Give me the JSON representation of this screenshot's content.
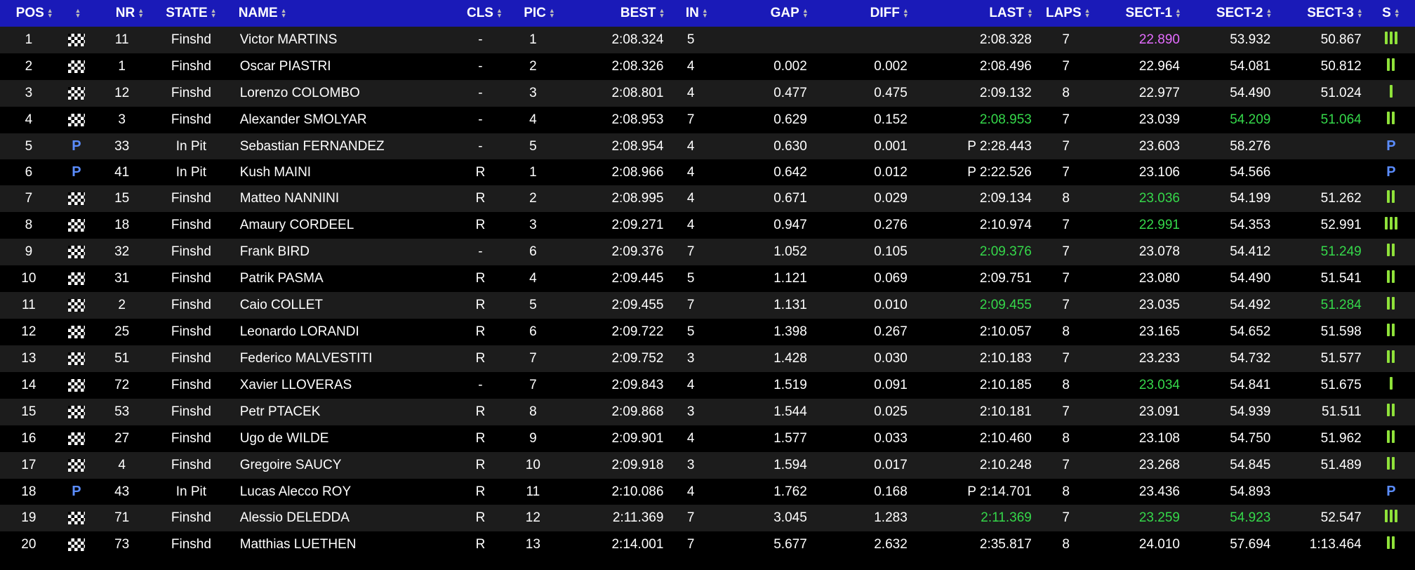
{
  "columns": {
    "pos": "POS",
    "nr": "NR",
    "state": "STATE",
    "name": "NAME",
    "cls": "CLS",
    "pic": "PIC",
    "best": "BEST",
    "in": "IN",
    "gap": "GAP",
    "diff": "DIFF",
    "last": "LAST",
    "laps": "LAPS",
    "s1": "SECT-1",
    "s2": "SECT-2",
    "s3": "SECT-3",
    "s": "S"
  },
  "style": {
    "header_bg": "#1a1ab8",
    "row_odd": "#1c1c1c",
    "row_even": "#000000",
    "text": "#ffffff",
    "green": "#35d84a",
    "purple": "#e46cff",
    "pit_blue": "#5b8dff",
    "bar_green": "#8fe23a",
    "bar_yellow": "#d8d83a",
    "font_size": 19
  },
  "flag_types": {
    "chk": "checkered-flag",
    "pit": "P"
  },
  "rows": [
    {
      "pos": "1",
      "flag": "chk",
      "nr": "11",
      "state": "Finshd",
      "name": "Victor MARTINS",
      "cls": "-",
      "pic": "1",
      "best": "2:08.324",
      "in": "5",
      "gap": "",
      "diff": "",
      "last": "2:08.328",
      "last_c": "w",
      "laps": "7",
      "s1": "22.890",
      "s1_c": "p",
      "s2": "53.932",
      "s2_c": "w",
      "s3": "50.867",
      "s3_c": "w",
      "bars": [
        "g",
        "g",
        "g"
      ]
    },
    {
      "pos": "2",
      "flag": "chk",
      "nr": "1",
      "state": "Finshd",
      "name": "Oscar PIASTRI",
      "cls": "-",
      "pic": "2",
      "best": "2:08.326",
      "in": "4",
      "gap": "0.002",
      "diff": "0.002",
      "last": "2:08.496",
      "last_c": "w",
      "laps": "7",
      "s1": "22.964",
      "s1_c": "w",
      "s2": "54.081",
      "s2_c": "w",
      "s3": "50.812",
      "s3_c": "w",
      "bars": [
        "g",
        "g"
      ]
    },
    {
      "pos": "3",
      "flag": "chk",
      "nr": "12",
      "state": "Finshd",
      "name": "Lorenzo COLOMBO",
      "cls": "-",
      "pic": "3",
      "best": "2:08.801",
      "in": "4",
      "gap": "0.477",
      "diff": "0.475",
      "last": "2:09.132",
      "last_c": "w",
      "laps": "8",
      "s1": "22.977",
      "s1_c": "w",
      "s2": "54.490",
      "s2_c": "w",
      "s3": "51.024",
      "s3_c": "w",
      "bars": [
        "g"
      ]
    },
    {
      "pos": "4",
      "flag": "chk",
      "nr": "3",
      "state": "Finshd",
      "name": "Alexander SMOLYAR",
      "cls": "-",
      "pic": "4",
      "best": "2:08.953",
      "in": "7",
      "gap": "0.629",
      "diff": "0.152",
      "last": "2:08.953",
      "last_c": "g",
      "laps": "7",
      "s1": "23.039",
      "s1_c": "w",
      "s2": "54.209",
      "s2_c": "g",
      "s3": "51.064",
      "s3_c": "g",
      "bars": [
        "g",
        "g"
      ]
    },
    {
      "pos": "5",
      "flag": "pit",
      "nr": "33",
      "state": "In Pit",
      "name": "Sebastian FERNANDEZ",
      "cls": "-",
      "pic": "5",
      "best": "2:08.954",
      "in": "4",
      "gap": "0.630",
      "diff": "0.001",
      "last": "P 2:28.443",
      "last_c": "w",
      "laps": "7",
      "s1": "23.603",
      "s1_c": "w",
      "s2": "58.276",
      "s2_c": "w",
      "s3": "",
      "s3_c": "w",
      "bars": [
        "pit"
      ]
    },
    {
      "pos": "6",
      "flag": "pit",
      "nr": "41",
      "state": "In Pit",
      "name": "Kush MAINI",
      "cls": "R",
      "pic": "1",
      "best": "2:08.966",
      "in": "4",
      "gap": "0.642",
      "diff": "0.012",
      "last": "P 2:22.526",
      "last_c": "w",
      "laps": "7",
      "s1": "23.106",
      "s1_c": "w",
      "s2": "54.566",
      "s2_c": "w",
      "s3": "",
      "s3_c": "w",
      "bars": [
        "pit"
      ]
    },
    {
      "pos": "7",
      "flag": "chk",
      "nr": "15",
      "state": "Finshd",
      "name": "Matteo NANNINI",
      "cls": "R",
      "pic": "2",
      "best": "2:08.995",
      "in": "4",
      "gap": "0.671",
      "diff": "0.029",
      "last": "2:09.134",
      "last_c": "w",
      "laps": "8",
      "s1": "23.036",
      "s1_c": "g",
      "s2": "54.199",
      "s2_c": "w",
      "s3": "51.262",
      "s3_c": "w",
      "bars": [
        "g",
        "g"
      ]
    },
    {
      "pos": "8",
      "flag": "chk",
      "nr": "18",
      "state": "Finshd",
      "name": "Amaury CORDEEL",
      "cls": "R",
      "pic": "3",
      "best": "2:09.271",
      "in": "4",
      "gap": "0.947",
      "diff": "0.276",
      "last": "2:10.974",
      "last_c": "w",
      "laps": "7",
      "s1": "22.991",
      "s1_c": "g",
      "s2": "54.353",
      "s2_c": "w",
      "s3": "52.991",
      "s3_c": "w",
      "bars": [
        "g",
        "g",
        "g"
      ]
    },
    {
      "pos": "9",
      "flag": "chk",
      "nr": "32",
      "state": "Finshd",
      "name": "Frank BIRD",
      "cls": "-",
      "pic": "6",
      "best": "2:09.376",
      "in": "7",
      "gap": "1.052",
      "diff": "0.105",
      "last": "2:09.376",
      "last_c": "g",
      "laps": "7",
      "s1": "23.078",
      "s1_c": "w",
      "s2": "54.412",
      "s2_c": "w",
      "s3": "51.249",
      "s3_c": "g",
      "bars": [
        "g",
        "g"
      ]
    },
    {
      "pos": "10",
      "flag": "chk",
      "nr": "31",
      "state": "Finshd",
      "name": "Patrik PASMA",
      "cls": "R",
      "pic": "4",
      "best": "2:09.445",
      "in": "5",
      "gap": "1.121",
      "diff": "0.069",
      "last": "2:09.751",
      "last_c": "w",
      "laps": "7",
      "s1": "23.080",
      "s1_c": "w",
      "s2": "54.490",
      "s2_c": "w",
      "s3": "51.541",
      "s3_c": "w",
      "bars": [
        "g",
        "g"
      ]
    },
    {
      "pos": "11",
      "flag": "chk",
      "nr": "2",
      "state": "Finshd",
      "name": "Caio COLLET",
      "cls": "R",
      "pic": "5",
      "best": "2:09.455",
      "in": "7",
      "gap": "1.131",
      "diff": "0.010",
      "last": "2:09.455",
      "last_c": "g",
      "laps": "7",
      "s1": "23.035",
      "s1_c": "w",
      "s2": "54.492",
      "s2_c": "w",
      "s3": "51.284",
      "s3_c": "g",
      "bars": [
        "g",
        "g"
      ]
    },
    {
      "pos": "12",
      "flag": "chk",
      "nr": "25",
      "state": "Finshd",
      "name": "Leonardo LORANDI",
      "cls": "R",
      "pic": "6",
      "best": "2:09.722",
      "in": "5",
      "gap": "1.398",
      "diff": "0.267",
      "last": "2:10.057",
      "last_c": "w",
      "laps": "8",
      "s1": "23.165",
      "s1_c": "w",
      "s2": "54.652",
      "s2_c": "w",
      "s3": "51.598",
      "s3_c": "w",
      "bars": [
        "g",
        "g"
      ]
    },
    {
      "pos": "13",
      "flag": "chk",
      "nr": "51",
      "state": "Finshd",
      "name": "Federico MALVESTITI",
      "cls": "R",
      "pic": "7",
      "best": "2:09.752",
      "in": "3",
      "gap": "1.428",
      "diff": "0.030",
      "last": "2:10.183",
      "last_c": "w",
      "laps": "7",
      "s1": "23.233",
      "s1_c": "w",
      "s2": "54.732",
      "s2_c": "w",
      "s3": "51.577",
      "s3_c": "w",
      "bars": [
        "g",
        "g"
      ]
    },
    {
      "pos": "14",
      "flag": "chk",
      "nr": "72",
      "state": "Finshd",
      "name": "Xavier LLOVERAS",
      "cls": "-",
      "pic": "7",
      "best": "2:09.843",
      "in": "4",
      "gap": "1.519",
      "diff": "0.091",
      "last": "2:10.185",
      "last_c": "w",
      "laps": "8",
      "s1": "23.034",
      "s1_c": "g",
      "s2": "54.841",
      "s2_c": "w",
      "s3": "51.675",
      "s3_c": "w",
      "bars": [
        "g"
      ]
    },
    {
      "pos": "15",
      "flag": "chk",
      "nr": "53",
      "state": "Finshd",
      "name": "Petr PTACEK",
      "cls": "R",
      "pic": "8",
      "best": "2:09.868",
      "in": "3",
      "gap": "1.544",
      "diff": "0.025",
      "last": "2:10.181",
      "last_c": "w",
      "laps": "7",
      "s1": "23.091",
      "s1_c": "w",
      "s2": "54.939",
      "s2_c": "w",
      "s3": "51.511",
      "s3_c": "w",
      "bars": [
        "g",
        "g"
      ]
    },
    {
      "pos": "16",
      "flag": "chk",
      "nr": "27",
      "state": "Finshd",
      "name": "Ugo de WILDE",
      "cls": "R",
      "pic": "9",
      "best": "2:09.901",
      "in": "4",
      "gap": "1.577",
      "diff": "0.033",
      "last": "2:10.460",
      "last_c": "w",
      "laps": "8",
      "s1": "23.108",
      "s1_c": "w",
      "s2": "54.750",
      "s2_c": "w",
      "s3": "51.962",
      "s3_c": "w",
      "bars": [
        "g",
        "g"
      ]
    },
    {
      "pos": "17",
      "flag": "chk",
      "nr": "4",
      "state": "Finshd",
      "name": "Gregoire SAUCY",
      "cls": "R",
      "pic": "10",
      "best": "2:09.918",
      "in": "3",
      "gap": "1.594",
      "diff": "0.017",
      "last": "2:10.248",
      "last_c": "w",
      "laps": "7",
      "s1": "23.268",
      "s1_c": "w",
      "s2": "54.845",
      "s2_c": "w",
      "s3": "51.489",
      "s3_c": "w",
      "bars": [
        "g",
        "g"
      ]
    },
    {
      "pos": "18",
      "flag": "pit",
      "nr": "43",
      "state": "In Pit",
      "name": "Lucas Alecco ROY",
      "cls": "R",
      "pic": "11",
      "best": "2:10.086",
      "in": "4",
      "gap": "1.762",
      "diff": "0.168",
      "last": "P 2:14.701",
      "last_c": "w",
      "laps": "8",
      "s1": "23.436",
      "s1_c": "w",
      "s2": "54.893",
      "s2_c": "w",
      "s3": "",
      "s3_c": "w",
      "bars": [
        "pit"
      ]
    },
    {
      "pos": "19",
      "flag": "chk",
      "nr": "71",
      "state": "Finshd",
      "name": "Alessio DELEDDA",
      "cls": "R",
      "pic": "12",
      "best": "2:11.369",
      "in": "7",
      "gap": "3.045",
      "diff": "1.283",
      "last": "2:11.369",
      "last_c": "g",
      "laps": "7",
      "s1": "23.259",
      "s1_c": "g",
      "s2": "54.923",
      "s2_c": "g",
      "s3": "52.547",
      "s3_c": "w",
      "bars": [
        "g",
        "g",
        "g"
      ]
    },
    {
      "pos": "20",
      "flag": "chk",
      "nr": "73",
      "state": "Finshd",
      "name": "Matthias LUETHEN",
      "cls": "R",
      "pic": "13",
      "best": "2:14.001",
      "in": "7",
      "gap": "5.677",
      "diff": "2.632",
      "last": "2:35.817",
      "last_c": "w",
      "laps": "8",
      "s1": "24.010",
      "s1_c": "w",
      "s2": "57.694",
      "s2_c": "w",
      "s3": "1:13.464",
      "s3_c": "w",
      "bars": [
        "g",
        "g"
      ]
    }
  ]
}
